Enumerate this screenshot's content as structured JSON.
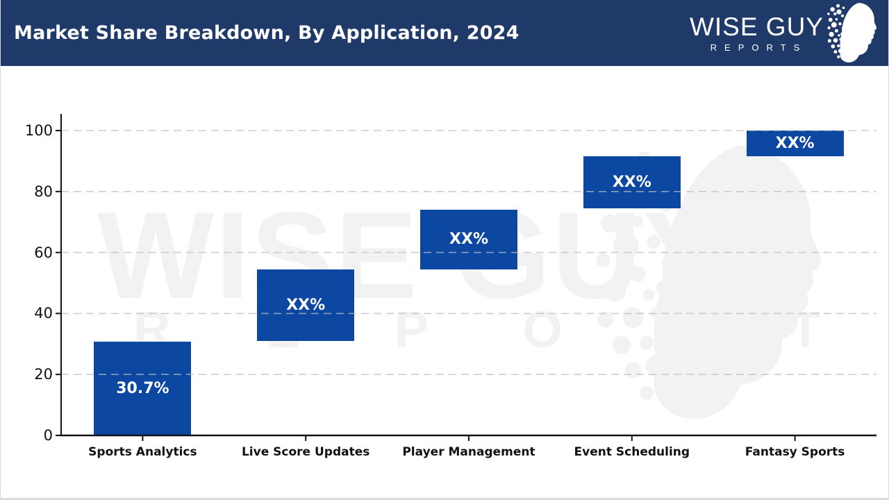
{
  "header": {
    "title": "Market Share Breakdown, By Application, 2024",
    "bg_color": "#1f3a68",
    "logo": {
      "line1": "WISE GUY",
      "line2": "REPORTS"
    }
  },
  "watermark": {
    "line1": "WISE GUY",
    "line2": "REPORTS"
  },
  "chart_data": {
    "type": "bar",
    "subtype": "waterfall",
    "title": "Market Share Breakdown, By Application, 2024",
    "categories": [
      "Sports Analytics",
      "Live Score Updates",
      "Player Management",
      "Event Scheduling",
      "Fantasy Sports"
    ],
    "segments": [
      {
        "category": "Sports Analytics",
        "start": 0,
        "end": 30.7,
        "label": "30.7%"
      },
      {
        "category": "Live Score Updates",
        "start": 31,
        "end": 54.5,
        "label": "XX%"
      },
      {
        "category": "Player Management",
        "start": 54.5,
        "end": 74,
        "label": "XX%"
      },
      {
        "category": "Event Scheduling",
        "start": 74.5,
        "end": 91.5,
        "label": "XX%"
      },
      {
        "category": "Fantasy Sports",
        "start": 91.5,
        "end": 100,
        "label": "XX%"
      }
    ],
    "yticks": [
      "0",
      "20",
      "40",
      "60",
      "80",
      "100"
    ],
    "ylim": [
      0,
      105.5
    ],
    "xlabel": "",
    "ylabel": "",
    "legend": null,
    "grid": true,
    "grid_style": "dashed",
    "bar_color": "#0c47a1",
    "bar_label_color": "#ffffff",
    "axis_color": "#111111",
    "grid_color": "#cccccc"
  }
}
